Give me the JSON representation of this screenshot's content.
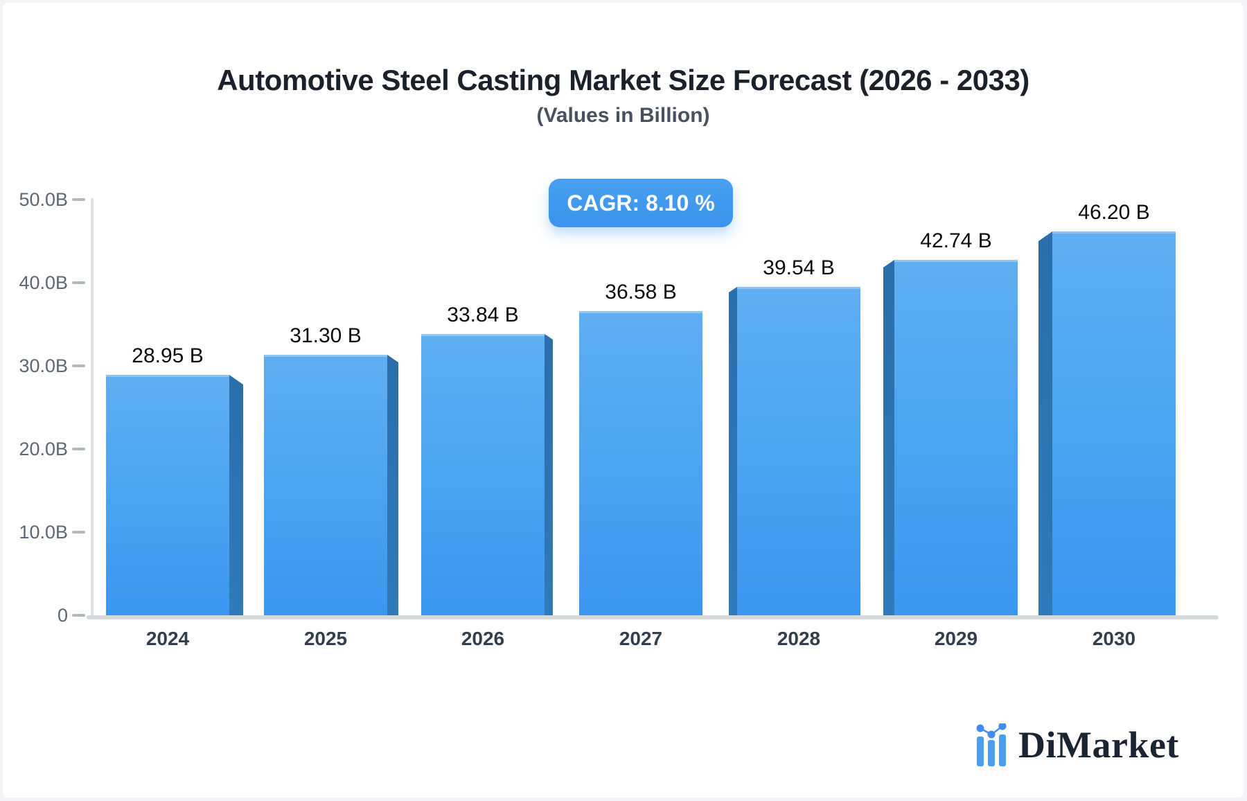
{
  "header": {
    "title": "Automotive Steel Casting Market Size Forecast (2026 - 2033)",
    "subtitle": "(Values in Billion)",
    "cagr_badge": "CAGR: 8.10 %"
  },
  "chart_data": {
    "type": "bar",
    "title": "Automotive Steel Casting Market Size Forecast (2026 - 2033)",
    "subtitle": "(Values in Billion)",
    "cagr_percent": 8.1,
    "categories": [
      "2024",
      "2025",
      "2026",
      "2027",
      "2028",
      "2029",
      "2030"
    ],
    "values": [
      28.95,
      31.3,
      33.84,
      36.58,
      39.54,
      42.74,
      46.2
    ],
    "value_labels": [
      "28.95 B",
      "31.30 B",
      "33.84 B",
      "36.58 B",
      "39.54 B",
      "42.74 B",
      "46.20 B"
    ],
    "y_ticks": [
      {
        "label": "50.0B",
        "value": 50
      },
      {
        "label": "40.0B",
        "value": 40
      },
      {
        "label": "30.0B",
        "value": 30
      },
      {
        "label": "20.0B",
        "value": 20
      },
      {
        "label": "10.0B",
        "value": 10
      },
      {
        "label": "0",
        "value": 0
      }
    ],
    "ylim": [
      0,
      50
    ],
    "xlabel": "",
    "ylabel": "",
    "grid": false,
    "legend": false,
    "colors": {
      "bar_top": "#60aef1",
      "bar_bottom": "#3b96ef",
      "bar_side": "#2d74b0",
      "axis_line": "#d6dade",
      "tick_label": "#5a6777",
      "year_label": "#333e4d",
      "value_label": "#0a0b0d",
      "badge_bg": "#3f99ee",
      "logo_blue": "#4a9df0",
      "logo_navy": "#1a2433"
    }
  },
  "logo": {
    "text": "DiMarket"
  }
}
